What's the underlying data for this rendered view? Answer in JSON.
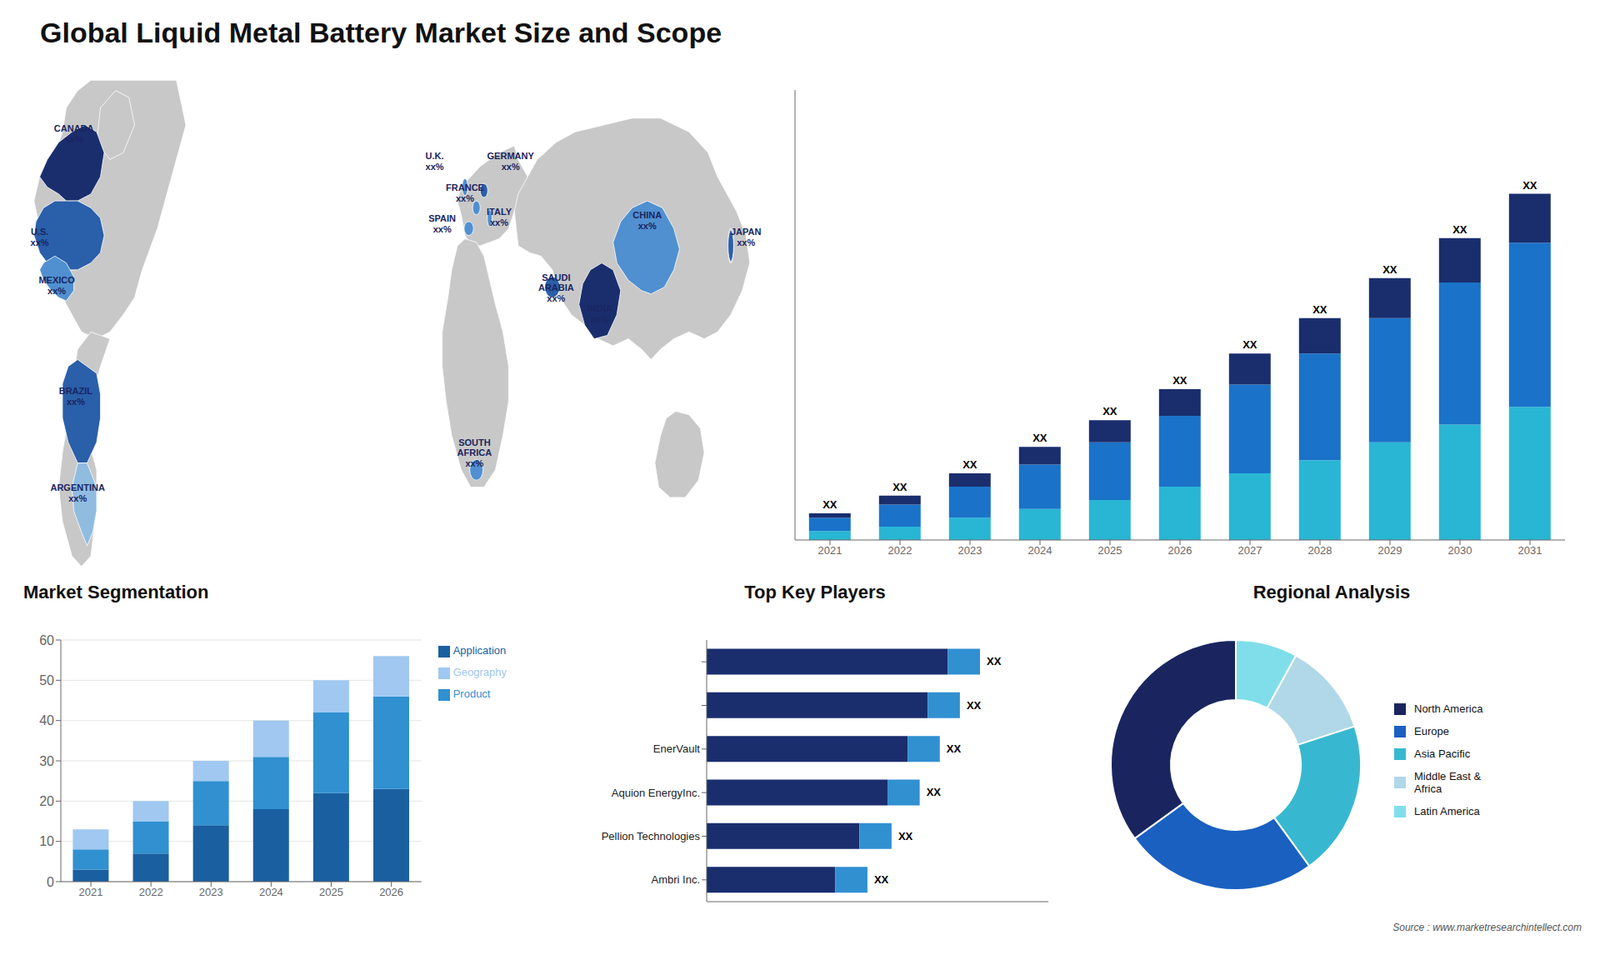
{
  "chart_data": [
    {
      "type": "bar",
      "title": "Global Liquid Metal Battery Market Size and Scope",
      "categories": [
        "2021",
        "2022",
        "2023",
        "2024",
        "2025",
        "2026",
        "2027",
        "2028",
        "2029",
        "2030",
        "2031"
      ],
      "series": [
        {
          "color": "#29b6d4",
          "values": [
            2,
            3,
            5,
            7,
            9,
            12,
            15,
            18,
            22,
            26,
            30
          ]
        },
        {
          "color": "#1a73c8",
          "values": [
            3,
            5,
            7,
            10,
            13,
            16,
            20,
            24,
            28,
            32,
            37
          ]
        },
        {
          "color": "#1a2e6e",
          "values": [
            1,
            2,
            3,
            4,
            5,
            6,
            7,
            8,
            9,
            10,
            11
          ]
        }
      ],
      "stacked": true,
      "ylim": [
        0,
        101.4
      ],
      "tick_labels": "x",
      "grid": false,
      "annotations": [
        "XX",
        "XX",
        "XX",
        "XX",
        "XX",
        "XX",
        "XX",
        "XX",
        "XX",
        "XX",
        "XX"
      ]
    },
    {
      "type": "map",
      "categories": [
        "CANADA",
        "U.S.",
        "MEXICO",
        "BRAZIL",
        "ARGENTINA",
        "U.K.",
        "FRANCE",
        "SPAIN",
        "GERMANY",
        "ITALY",
        "SAUDI\nARABIA",
        "SOUTH\nAFRICA",
        "CHINA",
        "INDIA",
        "JAPAN"
      ],
      "annotations": [
        "xx%",
        "xx%",
        "xx%",
        "xx%",
        "xx%",
        "xx%",
        "xx%",
        "xx%",
        "xx%",
        "xx%",
        "xx%",
        "xx%",
        "xx%",
        "xx%",
        "xx%"
      ],
      "colors": [
        "#1a2e6e",
        "#2a5faa",
        "#5090d0",
        "#2a5faa",
        "#90bce0",
        "#5090d0",
        "#5090d0",
        "#5090d0",
        "#2a5faa",
        "#5090d0",
        "#2a5faa",
        "#5090d0",
        "#5090d0",
        "#1a2e6e",
        "#2a5faa"
      ]
    },
    {
      "type": "bar",
      "title": "Market Segmentation",
      "categories": [
        "2021",
        "2022",
        "2023",
        "2024",
        "2025",
        "2026"
      ],
      "series": [
        {
          "name": "Application",
          "color": "#1a5fa0",
          "values": [
            3,
            7,
            14,
            18,
            22,
            23
          ]
        },
        {
          "name": "Product",
          "color": "#3090d0",
          "values": [
            5,
            8,
            11,
            13,
            20,
            23
          ]
        },
        {
          "name": "Geography",
          "color": "#a0c8f0",
          "values": [
            5,
            5,
            5,
            9,
            8,
            10
          ]
        }
      ],
      "stacked": true,
      "ylim": [
        0,
        60
      ],
      "yticks": [
        0,
        10,
        20,
        30,
        40,
        50,
        60
      ],
      "grid": true,
      "legend": "right"
    },
    {
      "type": "bar",
      "title": "Top Key Players",
      "orientation": "horizontal",
      "categories": [
        "Ambri Inc.",
        "Pellion Technologies",
        "Aquion EnergyInc.",
        "EnerVault",
        null,
        null
      ],
      "series": [
        {
          "color": "#1a2e6e",
          "values": [
            32,
            38,
            45,
            50,
            55,
            60
          ]
        },
        {
          "color": "#3090d0",
          "values": [
            8,
            8,
            8,
            8,
            8,
            8
          ]
        }
      ],
      "stacked": true,
      "xlim": [
        0,
        85
      ],
      "tick_labels": "y",
      "grid": false,
      "annotations": [
        "XX",
        "XX",
        "XX",
        "XX",
        "XX",
        "XX"
      ]
    },
    {
      "type": "pie",
      "title": "Regional Analysis",
      "categories": [
        "Latin America",
        "Middle East &\nAfrica",
        "Asia Pacific",
        "Europe",
        "North America"
      ],
      "values": [
        8,
        12,
        20,
        25,
        35
      ],
      "colors": [
        "#80deea",
        "#b0d8e8",
        "#38b8d0",
        "#1a60c0",
        "#1a2560"
      ],
      "legend": "right",
      "annotations": [
        "Source : www.marketresearchintellect.com"
      ]
    }
  ]
}
